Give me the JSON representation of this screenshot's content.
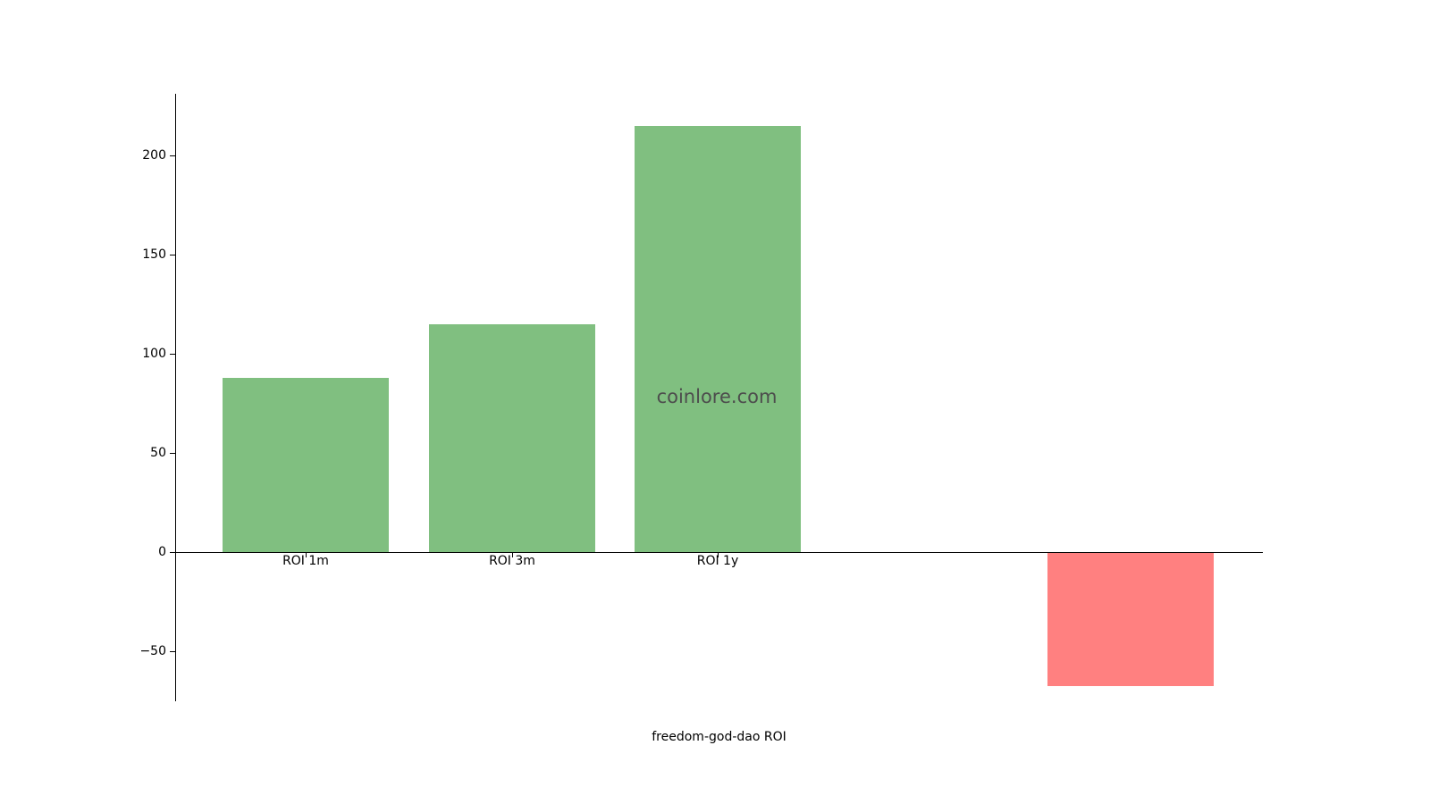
{
  "chart_data": {
    "type": "bar",
    "title": "freedom-god-dao ROI",
    "title_position": "bottom-center",
    "watermark": "coinlore.com",
    "categories": [
      "ROI 1m",
      "ROI 3m",
      "ROI 1y",
      ""
    ],
    "values": [
      88,
      115,
      215,
      -67
    ],
    "series": [
      {
        "name": "freedom-god-dao ROI",
        "values": [
          88,
          115,
          215,
          -67
        ]
      }
    ],
    "xlabel": "",
    "ylabel": "",
    "ylim": [
      -75,
      230
    ],
    "yticks": [
      200,
      150,
      100,
      50,
      0,
      -50
    ],
    "ytick_labels": [
      "200",
      "150",
      "100",
      "50",
      "0",
      "−50"
    ],
    "grid": false,
    "legend": null,
    "colors": {
      "positive": "#80bf80",
      "negative": "#ff8080",
      "axis": "#000000",
      "tick_text": "#000000",
      "watermark": "#4d4d4d"
    }
  }
}
